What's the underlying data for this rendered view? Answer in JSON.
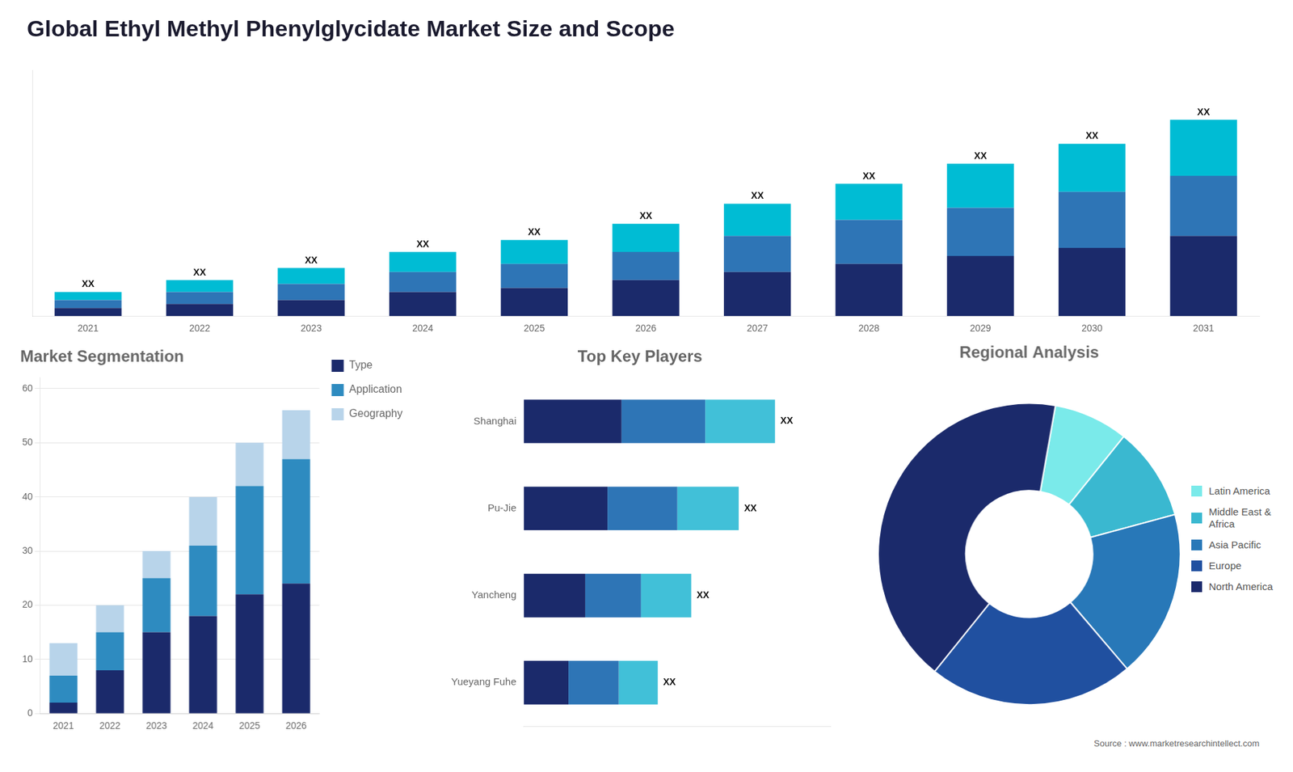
{
  "chart_data": [
    {
      "type": "bar",
      "title": "Global Ethyl Methyl Phenylglycidate Market Size and Scope",
      "categories": [
        "2021",
        "2022",
        "2023",
        "2024",
        "2025",
        "2026",
        "2027",
        "2028",
        "2029",
        "2030",
        "2031"
      ],
      "series": [
        {
          "color": "#1b2a6b",
          "values": [
            2,
            3,
            4,
            6,
            7,
            9,
            11,
            13,
            15,
            17,
            20
          ]
        },
        {
          "color": "#2e75b6",
          "values": [
            2,
            3,
            4,
            5,
            6,
            7,
            9,
            11,
            12,
            14,
            15
          ]
        },
        {
          "color": "#00bcd4",
          "values": [
            2,
            3,
            4,
            5,
            6,
            7,
            8,
            9,
            11,
            12,
            14
          ]
        }
      ],
      "stacked": true,
      "ylim": [
        0,
        61.25
      ],
      "tick_labels": "x",
      "grid": false,
      "stack_labels": [
        "XX",
        "XX",
        "XX",
        "XX",
        "XX",
        "XX",
        "XX",
        "XX",
        "XX",
        "XX",
        "XX"
      ]
    },
    {
      "type": "bar",
      "title": "Market Segmentation",
      "categories": [
        "2021",
        "2022",
        "2023",
        "2024",
        "2025",
        "2026"
      ],
      "series": [
        {
          "name": "Type",
          "color": "#1b2a6b",
          "values": [
            2,
            8,
            15,
            18,
            22,
            24
          ]
        },
        {
          "name": "Application",
          "color": "#2e8bc0",
          "values": [
            5,
            7,
            10,
            13,
            20,
            23
          ]
        },
        {
          "name": "Geography",
          "color": "#b8d4ea",
          "values": [
            6,
            5,
            5,
            9,
            8,
            9
          ]
        }
      ],
      "stacked": true,
      "ylim": [
        0,
        62
      ],
      "yticks": [
        0,
        10,
        20,
        30,
        40,
        50,
        60
      ],
      "grid": true,
      "legend": "right"
    },
    {
      "type": "bar",
      "title": "Top Key Players",
      "orientation": "horizontal",
      "categories": [
        "Shanghai",
        "Pu-Jie",
        "Yancheng",
        "Yueyang Fuhe"
      ],
      "series": [
        {
          "color": "#1b2a6b",
          "values": [
            35,
            30,
            22,
            16
          ]
        },
        {
          "color": "#2e75b6",
          "values": [
            30,
            25,
            20,
            18
          ]
        },
        {
          "color": "#41c0d8",
          "values": [
            25,
            22,
            18,
            14
          ]
        }
      ],
      "stacked": true,
      "xlim": [
        0,
        110
      ],
      "tick_labels": "y",
      "grid": false,
      "stack_labels": [
        "XX",
        "XX",
        "XX",
        "XX"
      ]
    },
    {
      "type": "doughnut",
      "title": "Regional Analysis",
      "categories": [
        "Latin America",
        "Middle East &\nAfrica",
        "Asia Pacific",
        "Europe",
        "North America"
      ],
      "values": [
        8,
        10,
        18,
        22,
        42
      ],
      "colors": [
        "#7aeaea",
        "#3ab8d0",
        "#2878b8",
        "#2050a0",
        "#1b2a6b"
      ],
      "legend": "right",
      "annotations": [
        "Source : www.marketresearchintellect.com"
      ]
    }
  ]
}
